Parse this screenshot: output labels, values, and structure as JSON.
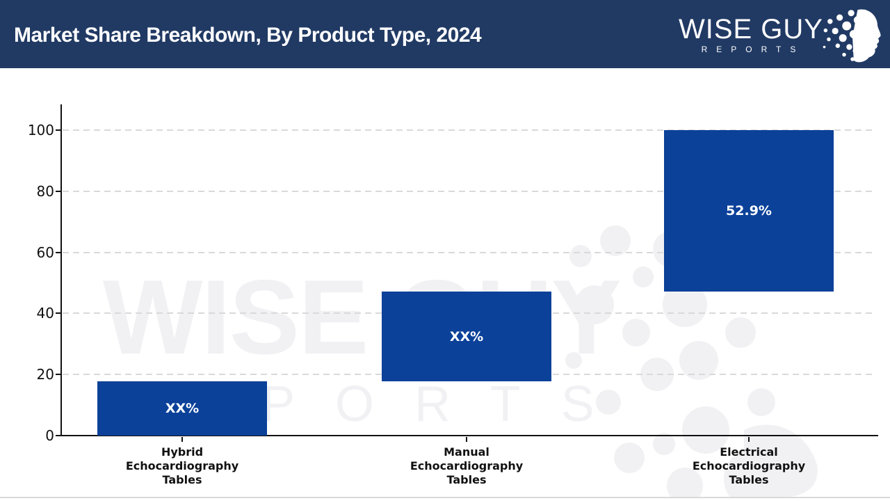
{
  "header": {
    "title": "Market Share Breakdown, By Product Type, 2024",
    "logo": {
      "line1": "WISE GUY",
      "line2": "REPORTS"
    }
  },
  "watermark": {
    "line1": "WISE GUY",
    "line2": "REPORTS"
  },
  "chart_data": {
    "type": "bar",
    "subtype": "waterfall-stacked-breakdown",
    "title": "Market Share Breakdown, By Product Type, 2024",
    "categories": [
      "Hybrid Echocardiography Tables",
      "Manual Echocardiography Tables",
      "Electrical Echocardiography Tables"
    ],
    "segments": [
      {
        "category": "Hybrid Echocardiography Tables",
        "start": 0,
        "end": 17.8,
        "value": 17.8,
        "label": "XX%"
      },
      {
        "category": "Manual Echocardiography Tables",
        "start": 17.8,
        "end": 47.1,
        "value": 29.3,
        "label": "XX%"
      },
      {
        "category": "Electrical Echocardiography Tables",
        "start": 47.1,
        "end": 100,
        "value": 52.9,
        "label": "52.9%"
      }
    ],
    "ylim": [
      0,
      108
    ],
    "yticks": [
      0,
      20,
      40,
      60,
      80,
      100
    ],
    "xlabel": "",
    "ylabel": "",
    "grid": "dashed-horizontal",
    "legend": "none",
    "colors": {
      "bar": "#0b4199",
      "bar_label": "#ffffff",
      "header_bg": "#213a64",
      "axis": "#111111",
      "gridline": "#d9d9d9",
      "watermark": "#f1f1f4"
    }
  }
}
